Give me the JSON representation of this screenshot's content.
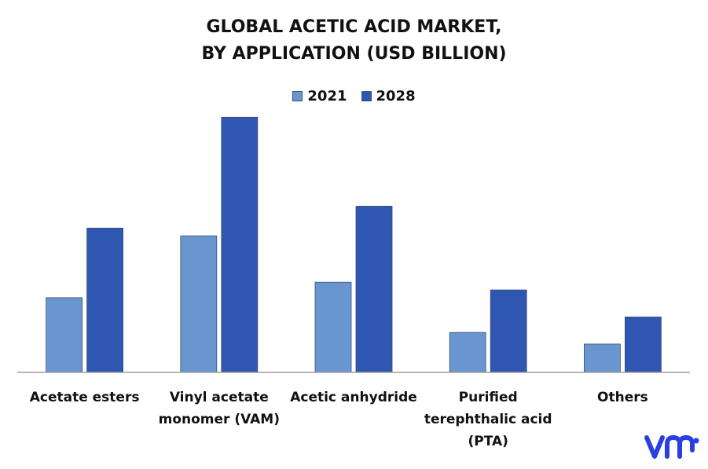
{
  "title_lines": [
    "GLOBAL ACETIC ACID MARKET,",
    "BY APPLICATION (USD BILLION)"
  ],
  "colors": {
    "series_2021": "#6a96cf",
    "series_2028": "#2f56b0",
    "axis": "#9e9e9e",
    "text": "#111111",
    "logo": "#2b3fe0"
  },
  "chart_data": {
    "type": "bar",
    "categories": [
      [
        "Acetate esters"
      ],
      [
        "Vinyl acetate",
        "monomer (VAM)"
      ],
      [
        "Acetic anhydride"
      ],
      [
        "Purified",
        "terephthalic acid",
        "(PTA)"
      ],
      [
        "Others"
      ]
    ],
    "series": [
      {
        "name": "2021",
        "values": [
          2.9,
          5.3,
          3.5,
          1.55,
          1.1
        ]
      },
      {
        "name": "2028",
        "values": [
          5.6,
          9.9,
          6.45,
          3.2,
          2.15
        ]
      }
    ],
    "ylim": [
      0,
      10
    ],
    "grid": false,
    "legend_position": "top-center",
    "xlabel": "",
    "ylabel": ""
  }
}
